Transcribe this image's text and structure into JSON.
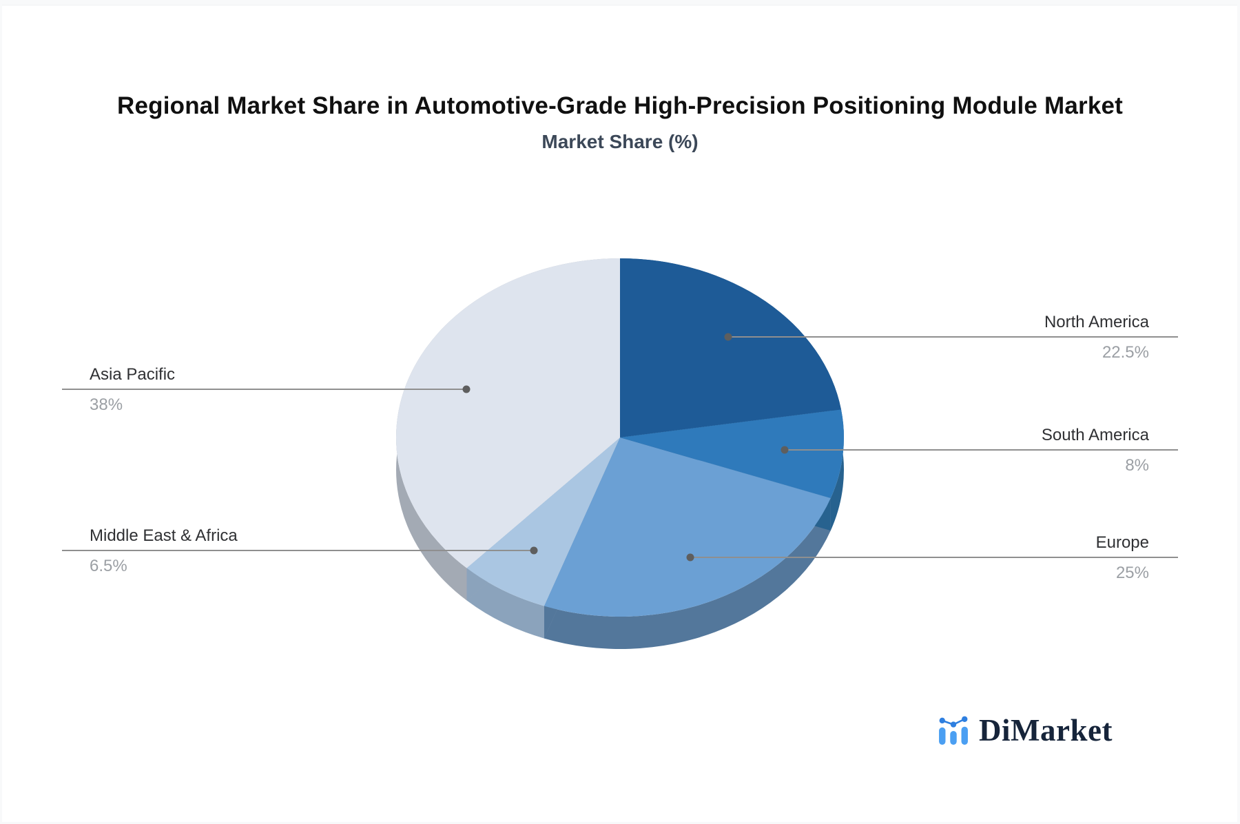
{
  "page": {
    "background": "#FFFFFF",
    "frame_color": "#F8F9FA"
  },
  "chart_data": {
    "type": "pie",
    "style": "3d",
    "title": "Regional Market Share in Automotive-Grade High-Precision Positioning Module Market",
    "subtitle": "Market Share (%)",
    "labels": [
      "North America",
      "South America",
      "Europe",
      "Middle East & Africa",
      "Asia Pacific"
    ],
    "values": [
      22.5,
      8,
      25,
      6.5,
      38
    ],
    "display_values": [
      "22.5%",
      "8%",
      "25%",
      "6.5%",
      "38%"
    ],
    "unit": "%",
    "start_angle": "12-o-clock",
    "direction": "clockwise",
    "legend_position": "callout-labels",
    "colors_top": [
      "#1E5B97",
      "#2F7ABB",
      "#6BA0D4",
      "#AAC6E2",
      "#DEE4EE"
    ],
    "colors_side": [
      "#174A7D",
      "#27628F",
      "#53779B",
      "#8BA3BC",
      "#A3AAB4"
    ],
    "leader_line_color": "#8F8F8F",
    "anchor_dot_color": "#5E5E5E",
    "label_color": "#2F3033",
    "value_color": "#9B9FA4",
    "title_color": "#101010",
    "subtitle_color": "#3C4858"
  },
  "branding": {
    "logo_text": "DiMarket",
    "logo_color": "#16243A",
    "icon_bar_color": "#4B9FF2",
    "icon_accent_color": "#2E7FE0"
  }
}
